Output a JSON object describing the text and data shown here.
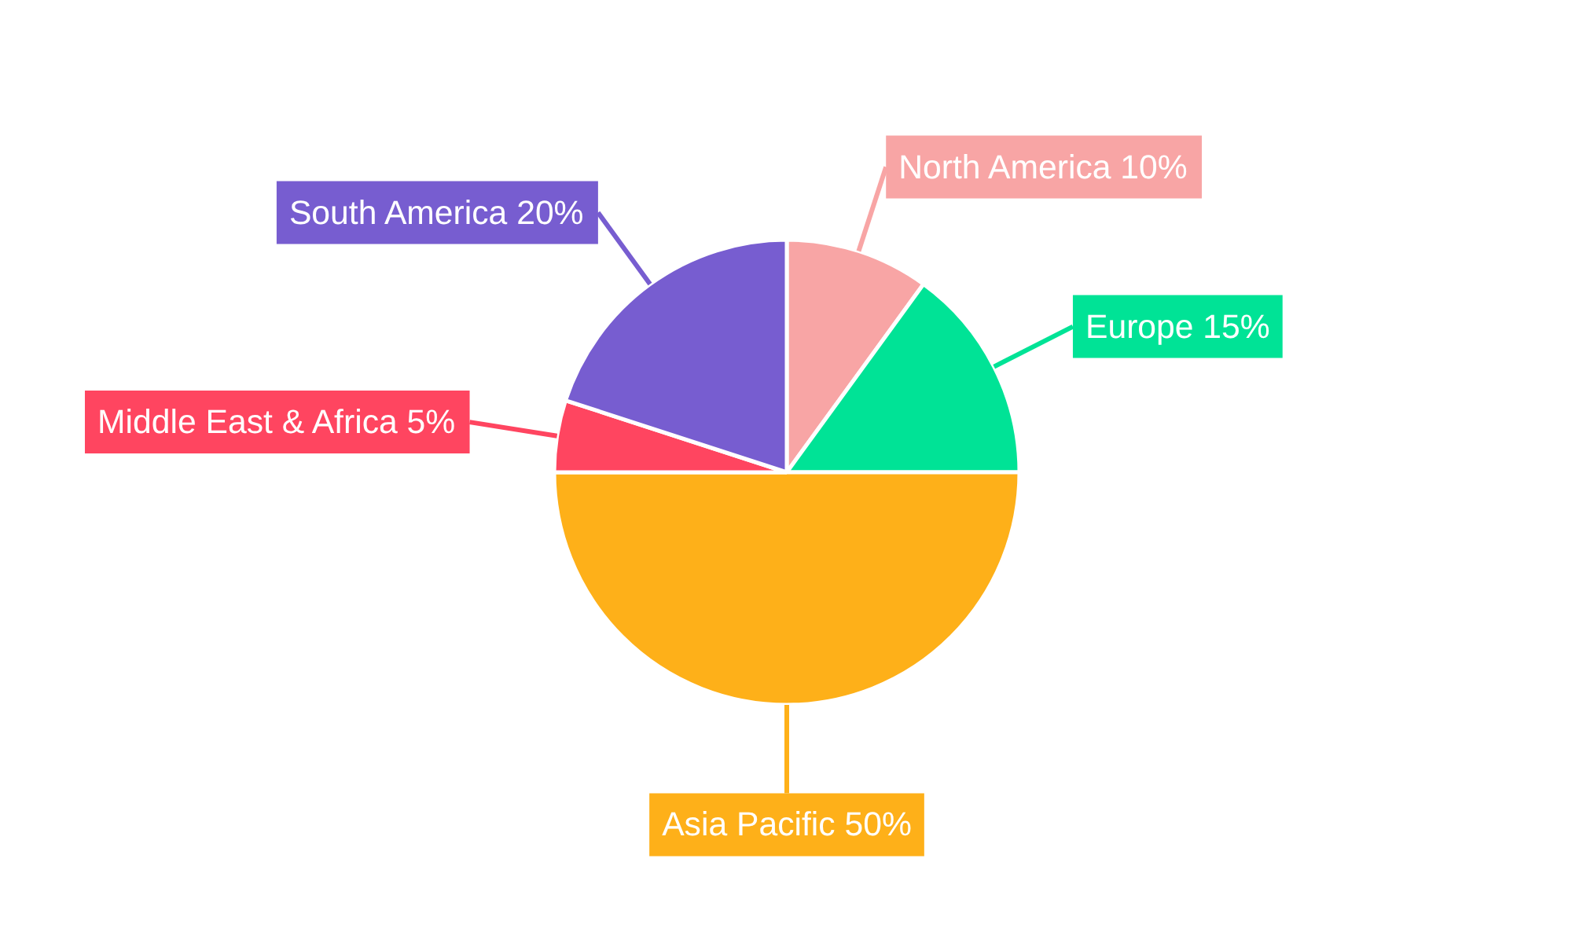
{
  "chart_data": {
    "type": "pie",
    "categories": [
      "North America",
      "Europe",
      "Asia Pacific",
      "Middle East & Africa",
      "South America"
    ],
    "values": [
      10,
      15,
      50,
      5,
      20
    ],
    "colors": [
      "#f8a5a5",
      "#00e396",
      "#feb019",
      "#ff4560",
      "#775dd0"
    ],
    "value_labels": [
      "10%",
      "15%",
      "50%",
      "5%",
      "20%"
    ]
  }
}
